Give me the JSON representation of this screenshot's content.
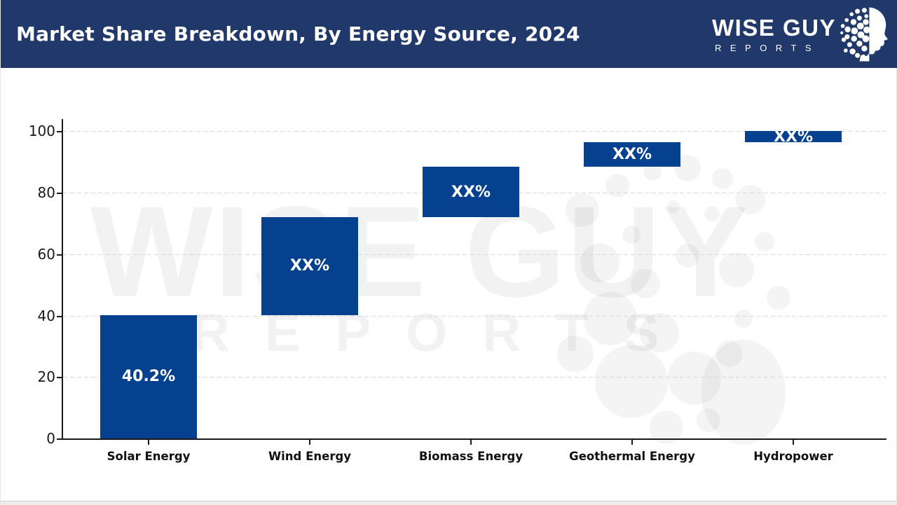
{
  "header": {
    "title": "Market Share Breakdown, By Energy Source, 2024",
    "logo_line1": "WISE GUY",
    "logo_line2": "REPORTS",
    "bg_color": "#21386B",
    "text_color": "#FFFFFF"
  },
  "watermark": {
    "line1": "WISE GUY",
    "line2": "REPORTS"
  },
  "chart_data": {
    "type": "bar",
    "variant": "waterfall",
    "title": "Market Share Breakdown, By Energy Source, 2024",
    "categories": [
      "Solar Energy",
      "Wind Energy",
      "Biomass Energy",
      "Geothermal Energy",
      "Hydropower"
    ],
    "bars": [
      {
        "category": "Solar Energy",
        "start": 0,
        "end": 40.2,
        "value": 40.2,
        "value_label": "40.2%"
      },
      {
        "category": "Wind Energy",
        "start": 40.2,
        "end": 72.0,
        "value": 31.8,
        "value_label": "XX%"
      },
      {
        "category": "Biomass Energy",
        "start": 72.0,
        "end": 88.4,
        "value": 16.4,
        "value_label": "XX%"
      },
      {
        "category": "Geothermal Energy",
        "start": 88.4,
        "end": 96.4,
        "value": 8.0,
        "value_label": "XX%"
      },
      {
        "category": "Hydropower",
        "start": 96.4,
        "end": 100.0,
        "value": 3.6,
        "value_label": "XX%"
      }
    ],
    "yticks": [
      0,
      20,
      40,
      60,
      80,
      100
    ],
    "ylim": [
      0,
      104
    ],
    "xlabel": "",
    "ylabel": "",
    "grid": "horizontal-dashed",
    "legend": "none",
    "bar_color": "#06418F",
    "bar_label_color": "#FFFFFF",
    "axis_color": "#1A1A1A",
    "grid_color": "#D9D9D9",
    "tick_label_color": "#1A1A1A"
  }
}
